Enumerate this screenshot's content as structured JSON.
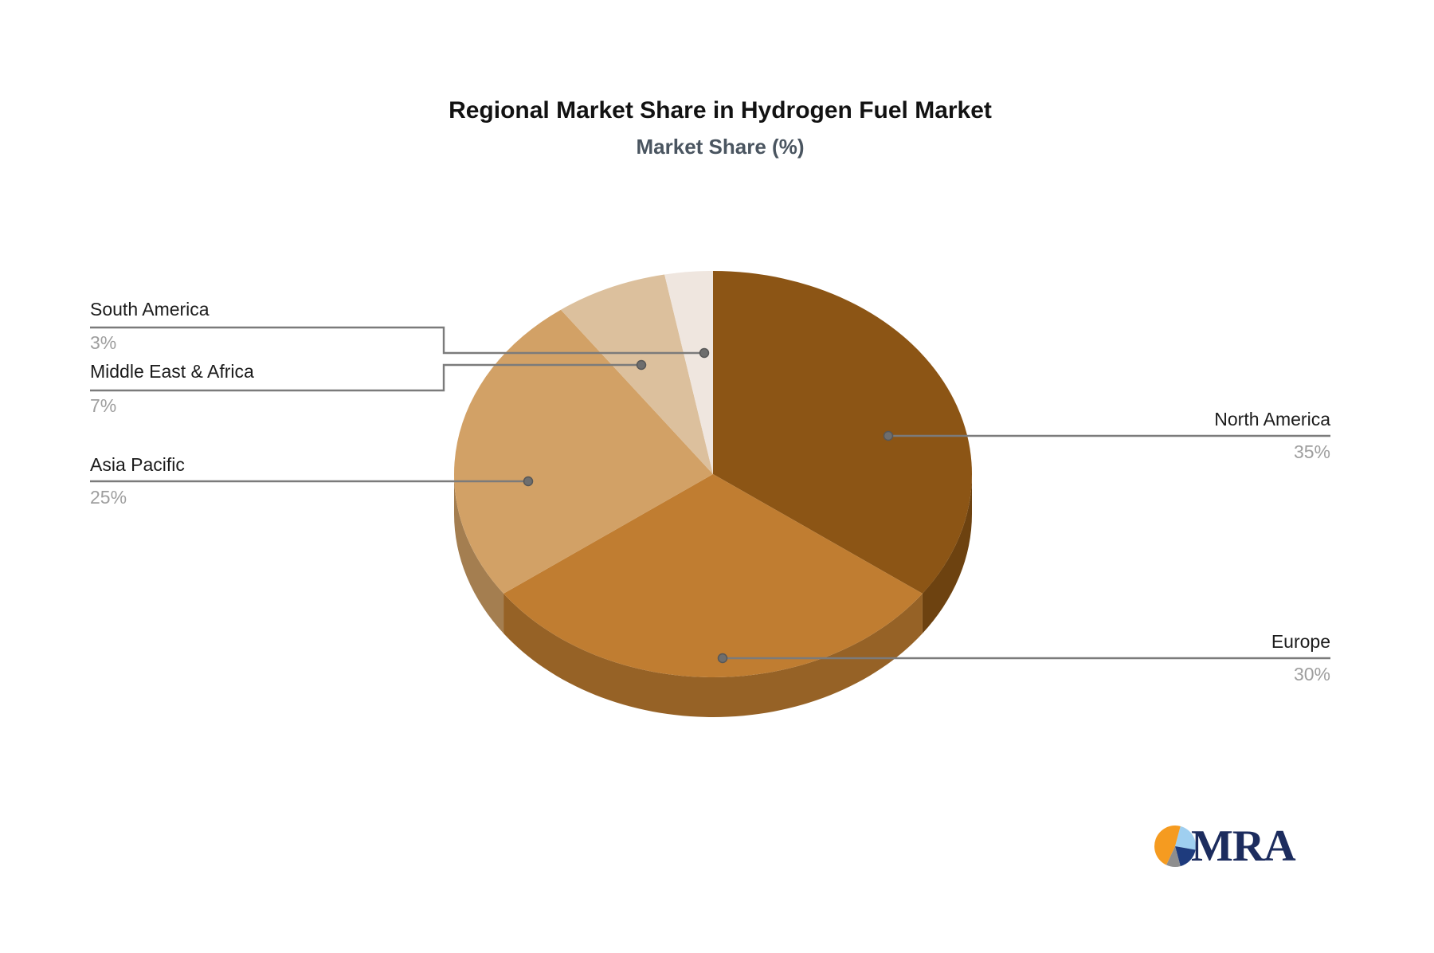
{
  "header": {
    "title": "Regional Market Share in Hydrogen Fuel Market",
    "subtitle": "Market Share (%)"
  },
  "chart_data": {
    "type": "pie",
    "title": "Regional Market Share in Hydrogen Fuel Market",
    "subtitle": "Market Share (%)",
    "effect": "3d",
    "start_angle_deg": 0,
    "direction": "clockwise",
    "labels": [
      "North America",
      "Europe",
      "Asia Pacific",
      "Middle East & Africa",
      "South America"
    ],
    "values": [
      35,
      30,
      25,
      7,
      3
    ],
    "display_values": [
      "35%",
      "30%",
      "25%",
      "7%",
      "3%"
    ],
    "colors": [
      "#8C5515",
      "#C07D31",
      "#D2A166",
      "#DCC09D",
      "#EFE6DF"
    ],
    "label_color": "#1C1C1C",
    "value_label_color": "#9E9E9E",
    "leader_line_color": "#7B7B7B",
    "legend": "none"
  },
  "logo": {
    "text": "MRA",
    "text_color": "#1C2C5E",
    "pie_colors": [
      "#9FCFF0",
      "#1E3B7D",
      "#8E8E8E",
      "#F59B20"
    ]
  }
}
